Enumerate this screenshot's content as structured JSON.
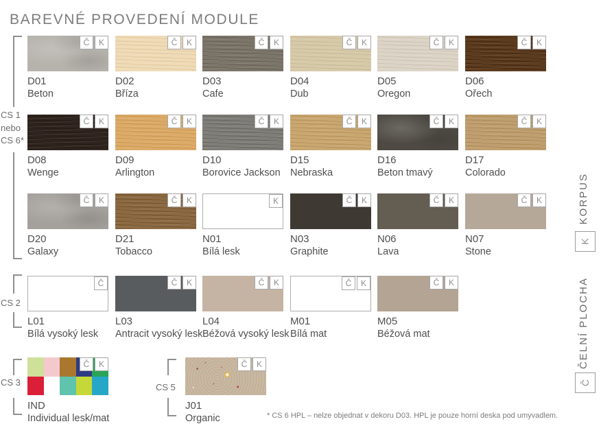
{
  "title": "BAREVNÉ PROVEDENÍ MODULE",
  "badges": {
    "front": "Č",
    "korpus": "K"
  },
  "legend": {
    "korpus_label": "KORPUS",
    "korpus_badge": "K",
    "front_label": "ČELNÍ PLOCHA",
    "front_badge": "Č"
  },
  "groups": {
    "cs1": {
      "lines": [
        "CS 1",
        "nebo",
        "CS 6*"
      ]
    },
    "cs2": {
      "label": "CS 2"
    },
    "cs3": {
      "label": "CS 3"
    },
    "cs5": {
      "label": "CS 5"
    }
  },
  "footnote": "* CS 6 HPL –  nelze objednat v dekoru D03. HPL je pouze horní deska pod umyvadlem.",
  "swatches": {
    "d01": {
      "code": "D01",
      "name": "Beton",
      "style": "--c:#b6b3ad;--g:#a8a49c"
    },
    "d02": {
      "code": "D02",
      "name": "Bříza",
      "style": "--c:#efdbb7;--g:#e4cda4"
    },
    "d03": {
      "code": "D03",
      "name": "Cafe",
      "style": "--c:#7c766a;--g:#6b6458"
    },
    "d04": {
      "code": "D04",
      "name": "Dub",
      "style": "--c:#d7caa9;--g:#cbbd9a"
    },
    "d05": {
      "code": "D05",
      "name": "Oregon",
      "style": "--c:#dcd4c7;--g:#cfc6b6"
    },
    "d06": {
      "code": "D06",
      "name": "Ořech",
      "style": "--c:#5c3b1e;--g:#462a10"
    },
    "d08": {
      "code": "D08",
      "name": "Wenge",
      "style": "--c:#2f231d;--g:#251b15"
    },
    "d09": {
      "code": "D09",
      "name": "Arlington",
      "style": "--c:#dcab69;--g:#cf9b54"
    },
    "d10": {
      "code": "D10",
      "name": "Borovice Jackson",
      "style": "--c:#7f7e79;--g:#6b6a65"
    },
    "d15": {
      "code": "D15",
      "name": "Nebraska",
      "style": "--c:#c9a771;--g:#ba955b"
    },
    "d16": {
      "code": "D16",
      "name": "Beton tmavý",
      "style": "--c:#4e4a43;--g:#433f38"
    },
    "d17": {
      "code": "D17",
      "name": "Colorado",
      "style": "--c:#bf9f70;--g:#b08e5a"
    },
    "d20": {
      "code": "D20",
      "name": "Galaxy",
      "style": "--c:#a4a19c;--g:#97948f"
    },
    "d21": {
      "code": "D21",
      "name": "Tobacco",
      "style": "--c:#8b6a42;--g:#785631"
    },
    "n01": {
      "code": "N01",
      "name": "Bílá lesk",
      "style": "--c:#ffffff"
    },
    "n03": {
      "code": "N03",
      "name": "Graphite",
      "style": "--c:#3f3934"
    },
    "n06": {
      "code": "N06",
      "name": "Lava",
      "style": "--c:#635d52"
    },
    "n07": {
      "code": "N07",
      "name": "Stone",
      "style": "--c:#b5a899"
    },
    "l01": {
      "code": "L01",
      "name": "Bílá vysoký lesk",
      "style": "--c:#ffffff"
    },
    "l03": {
      "code": "L03",
      "name": "Antracit vysoký lesk",
      "style": "--c:#595c5e"
    },
    "l04": {
      "code": "L04",
      "name": "Béžová vysoký lesk",
      "style": "--c:#c5b4a3"
    },
    "m01": {
      "code": "M01",
      "name": "Bílá mat",
      "style": "--c:#ffffff"
    },
    "m05": {
      "code": "M05",
      "name": "Béžová mat",
      "style": "--c:#b3a494"
    },
    "ind": {
      "code": "IND",
      "name": "Individual lesk/mat",
      "styles": [
        "background:#cfe099",
        "background:#f4c9ce",
        "background:#a9782e",
        "background:#2e3c83",
        "background:#2aa457",
        "background:#da1f39",
        "background:#ffffff",
        "background:#5fc3ae",
        "background:#c6d838",
        "background:#27a7c7"
      ]
    },
    "j01": {
      "code": "J01",
      "name": "Organic",
      "style": "--c:#c9b8a2"
    }
  }
}
